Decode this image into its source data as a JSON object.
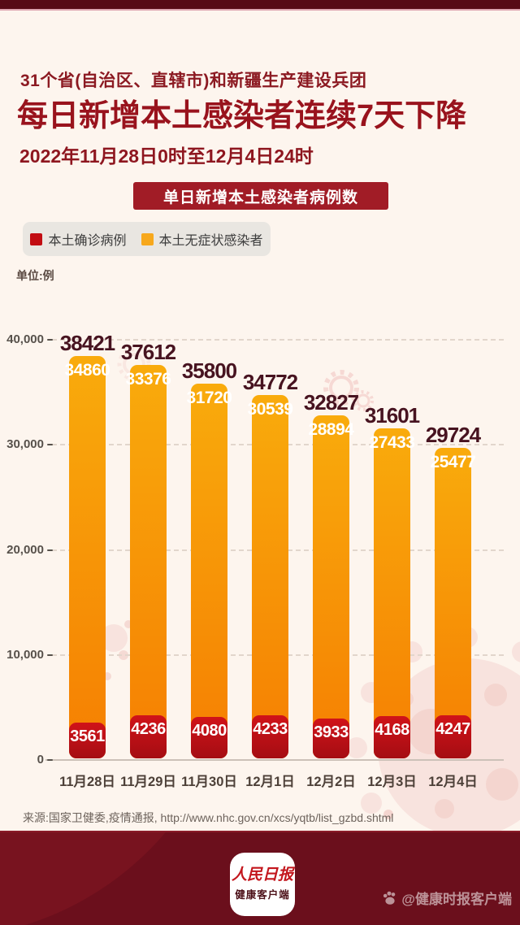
{
  "header": {
    "supertitle": "31个省(自治区、直辖市)和新疆生产建设兵团",
    "title": "每日新增本土感染者连续7天下降",
    "date_range": "2022年11月28日0时至12月4日24时",
    "badge": "单日新增本土感染者病例数"
  },
  "legend": {
    "items": [
      {
        "label": "本土确诊病例",
        "color": "#c20d12"
      },
      {
        "label": "本土无症状感染者",
        "color": "#f7a81c"
      }
    ]
  },
  "unit_label": "单位:例",
  "chart_data": {
    "type": "bar",
    "stacked": true,
    "title": "单日新增本土感染者病例数",
    "categories": [
      "11月28日",
      "11月29日",
      "11月30日",
      "12月1日",
      "12月2日",
      "12月3日",
      "12月4日"
    ],
    "series": [
      {
        "name": "本土确诊病例",
        "colors": [
          "#d01319",
          "#a50d13"
        ],
        "values": [
          3561,
          4236,
          4080,
          4233,
          3933,
          4168,
          4247
        ]
      },
      {
        "name": "本土无症状感染者",
        "colors": [
          "#f9ab0c",
          "#f57f02"
        ],
        "values": [
          34860,
          33376,
          31720,
          30539,
          28894,
          27433,
          25477
        ]
      }
    ],
    "totals": [
      38421,
      37612,
      35800,
      34772,
      32827,
      31601,
      29724
    ],
    "y_ticks": [
      "40,000",
      "30,000",
      "20,000",
      "10,000",
      "0"
    ],
    "ylim": [
      0,
      40000
    ],
    "grid": "horizontal-dashed",
    "legend_position": "top-left",
    "xlabel": "",
    "ylabel": "单位:例"
  },
  "source": "来源:国家卫健委,疫情通报, http://www.nhc.gov.cn/xcs/yqtb/list_gzbd.shtml",
  "footer": {
    "logo_line1": "人民日报",
    "logo_line2": "健康客户端",
    "watermark": "@健康时报客户端"
  },
  "colors": {
    "background": "#fdf5ee",
    "top_bar": "#570a16",
    "title_red": "#99131d",
    "badge_bg": "#a11c26",
    "total_label": "#471320",
    "footer_bg": "#6b0f1c",
    "watermark_pink": "#f5d6d2"
  }
}
